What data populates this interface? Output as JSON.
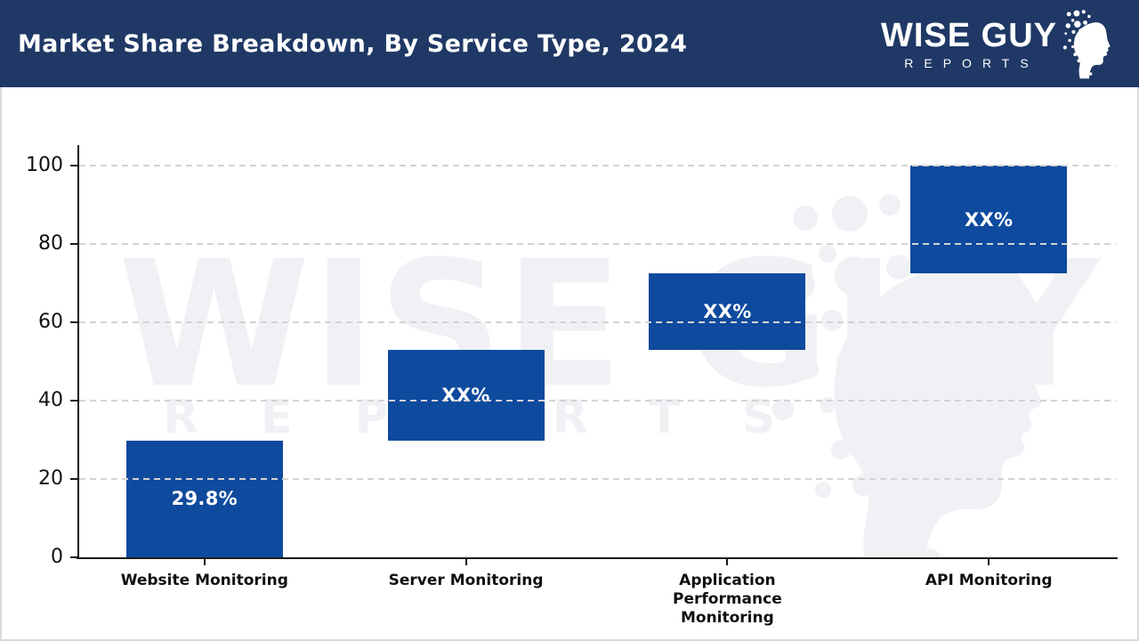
{
  "header": {
    "title": "Market Share Breakdown, By Service Type, 2024",
    "brand": {
      "line1": "WISE GUY",
      "line2": "REPORTS"
    },
    "bg_color": "#1f3865"
  },
  "watermark": {
    "line1": "WISE GUY",
    "line2": "REPORTS"
  },
  "chart_data": {
    "type": "bar",
    "subtype": "waterfall",
    "title": "Market Share Breakdown, By Service Type, 2024",
    "categories": [
      "Website Monitoring",
      "Server Monitoring",
      "Application\nPerformance\nMonitoring",
      "API Monitoring"
    ],
    "bars": [
      {
        "category": "Website Monitoring",
        "start": 0,
        "end": 29.8,
        "label": "29.8%"
      },
      {
        "category": "Server Monitoring",
        "start": 29.8,
        "end": 53.0,
        "label": "XX%"
      },
      {
        "category": "Application Performance Monitoring",
        "start": 53.0,
        "end": 72.5,
        "label": "XX%"
      },
      {
        "category": "API Monitoring",
        "start": 72.5,
        "end": 100,
        "label": "XX%"
      }
    ],
    "ylim": [
      0,
      100
    ],
    "yticks": [
      0,
      20,
      40,
      60,
      80,
      100
    ],
    "xlabel": "",
    "ylabel": "",
    "grid": "horizontal-dashed",
    "legend": "none",
    "bar_color": "#0e4a9d",
    "bar_label_color": "#ffffff"
  }
}
